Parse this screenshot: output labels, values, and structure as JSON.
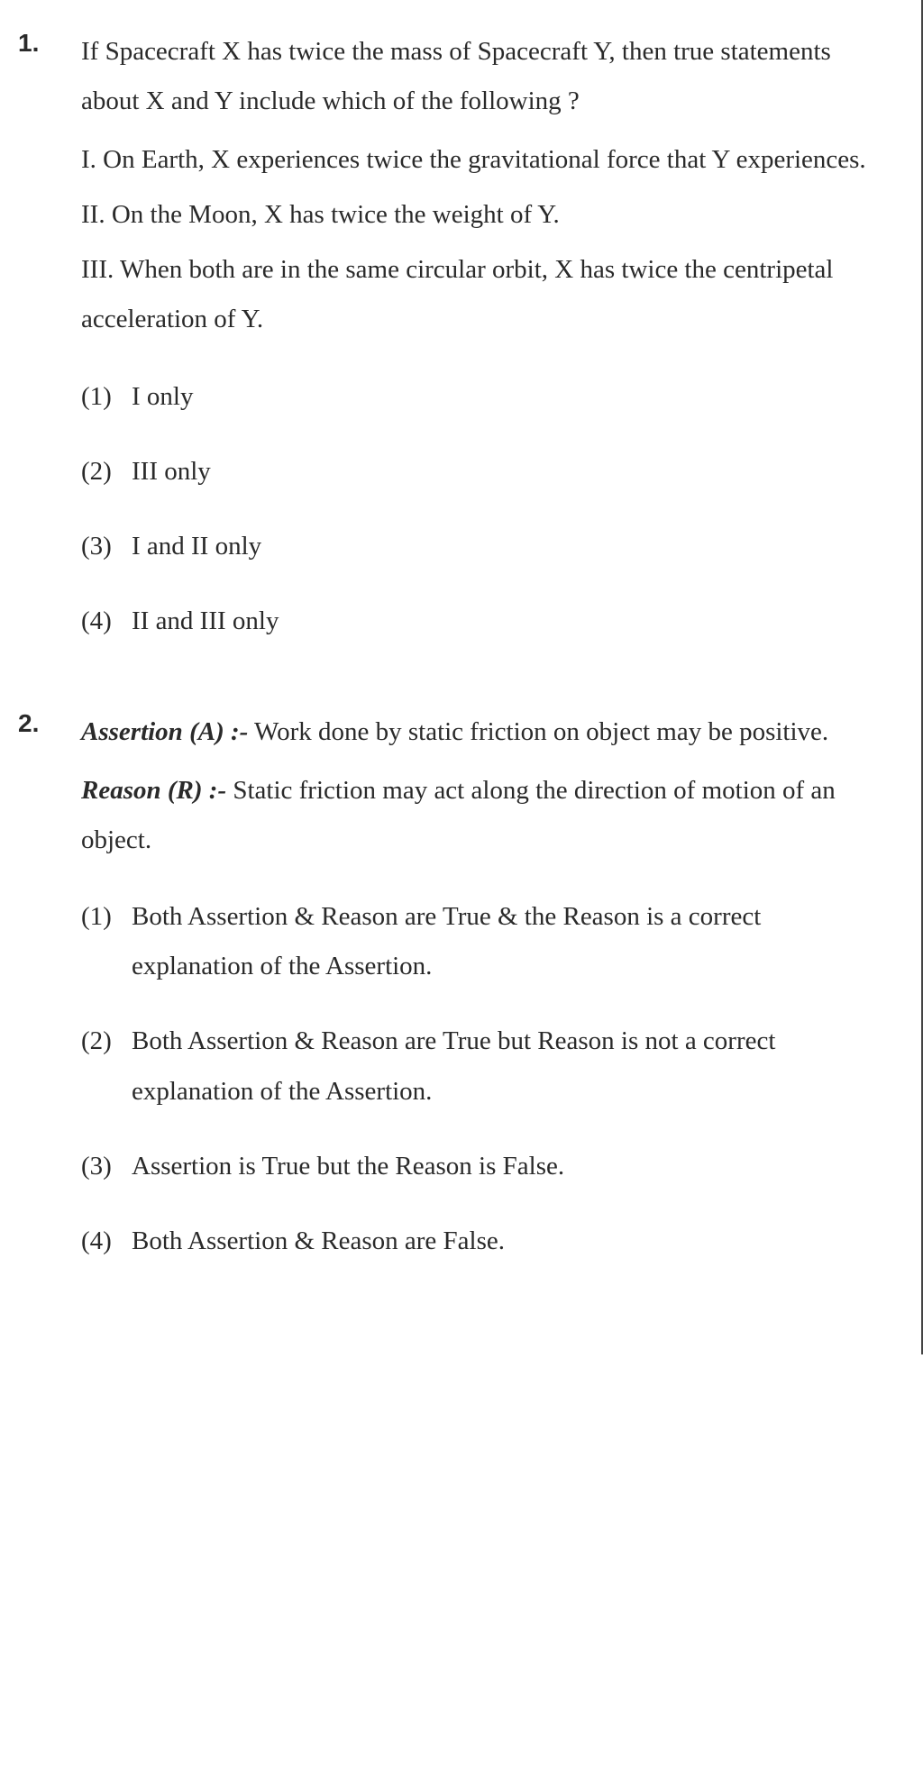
{
  "q1": {
    "number": "1.",
    "stem": "If Spacecraft X has twice the mass of Spacecraft Y, then true statements about X and Y include which of the following ?",
    "roman": [
      "I. On Earth, X experiences twice the gravitational force that Y experiences.",
      "II. On the Moon, X has twice the weight of Y.",
      "III. When both are in the same circular orbit, X has twice the centripetal acceleration of Y."
    ],
    "options": [
      {
        "label": "(1)",
        "text": "I only"
      },
      {
        "label": "(2)",
        "text": "III only"
      },
      {
        "label": "(3)",
        "text": "I and II only"
      },
      {
        "label": "(4)",
        "text": "II and III only"
      }
    ]
  },
  "q2": {
    "number": "2.",
    "assertion_label": "Assertion (A) :-",
    "assertion_text": " Work done by static friction on object may be positive.",
    "reason_label": "Reason (R) :-",
    "reason_text": " Static friction may act along the direction of motion of an object.",
    "options": [
      {
        "label": "(1)",
        "text": "Both Assertion & Reason are True & the Reason is a correct explanation of the Assertion."
      },
      {
        "label": "(2)",
        "text": "Both Assertion & Reason are True but Reason is not a correct explanation of the Assertion."
      },
      {
        "label": "(3)",
        "text": "Assertion is True but the Reason is False."
      },
      {
        "label": "(4)",
        "text": "Both Assertion & Reason are False."
      }
    ]
  }
}
